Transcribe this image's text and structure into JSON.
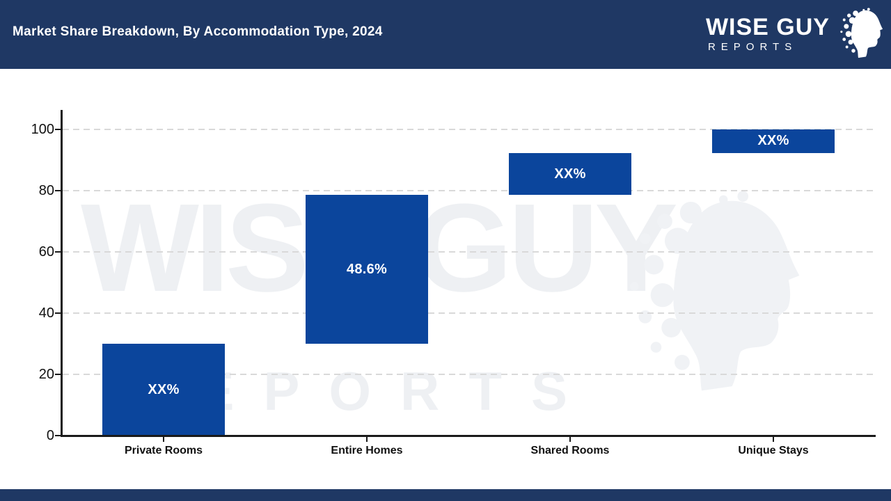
{
  "colors": {
    "header_bg": "#1f3864",
    "footer_bg": "#1f3864",
    "bar": "#0b459c",
    "axis": "#1a1a1a",
    "gridline": "#d9d9d9",
    "watermark": "#eef0f3",
    "tick_text": "#111111",
    "bar_label_text": "#ffffff"
  },
  "header": {
    "title": "Market Share Breakdown, By Accommodation Type, 2024"
  },
  "logo": {
    "line1": "WISE GUY",
    "line2": "REPORTS"
  },
  "watermark": {
    "line1": "WISE GUY",
    "line2": "REPORTS"
  },
  "chart_data": {
    "type": "bar",
    "subtype": "waterfall",
    "title": "Market Share Breakdown, By Accommodation Type, 2024",
    "categories": [
      "Private Rooms",
      "Entire Homes",
      "Shared Rooms",
      "Unique Stays"
    ],
    "segments": [
      {
        "category": "Private Rooms",
        "start": 0,
        "end": 30,
        "label": "XX%"
      },
      {
        "category": "Entire Homes",
        "start": 30,
        "end": 78.6,
        "label": "48.6%"
      },
      {
        "category": "Shared Rooms",
        "start": 78.6,
        "end": 92.3,
        "label": "XX%"
      },
      {
        "category": "Unique Stays",
        "start": 92.3,
        "end": 100,
        "label": "XX%"
      }
    ],
    "yticks": [
      0,
      20,
      40,
      60,
      80,
      100
    ],
    "ylim": [
      0,
      106
    ],
    "xlabel": "",
    "ylabel": "",
    "grid": "horizontal-dashed",
    "legend": "none",
    "bar_color": "#0b459c"
  }
}
